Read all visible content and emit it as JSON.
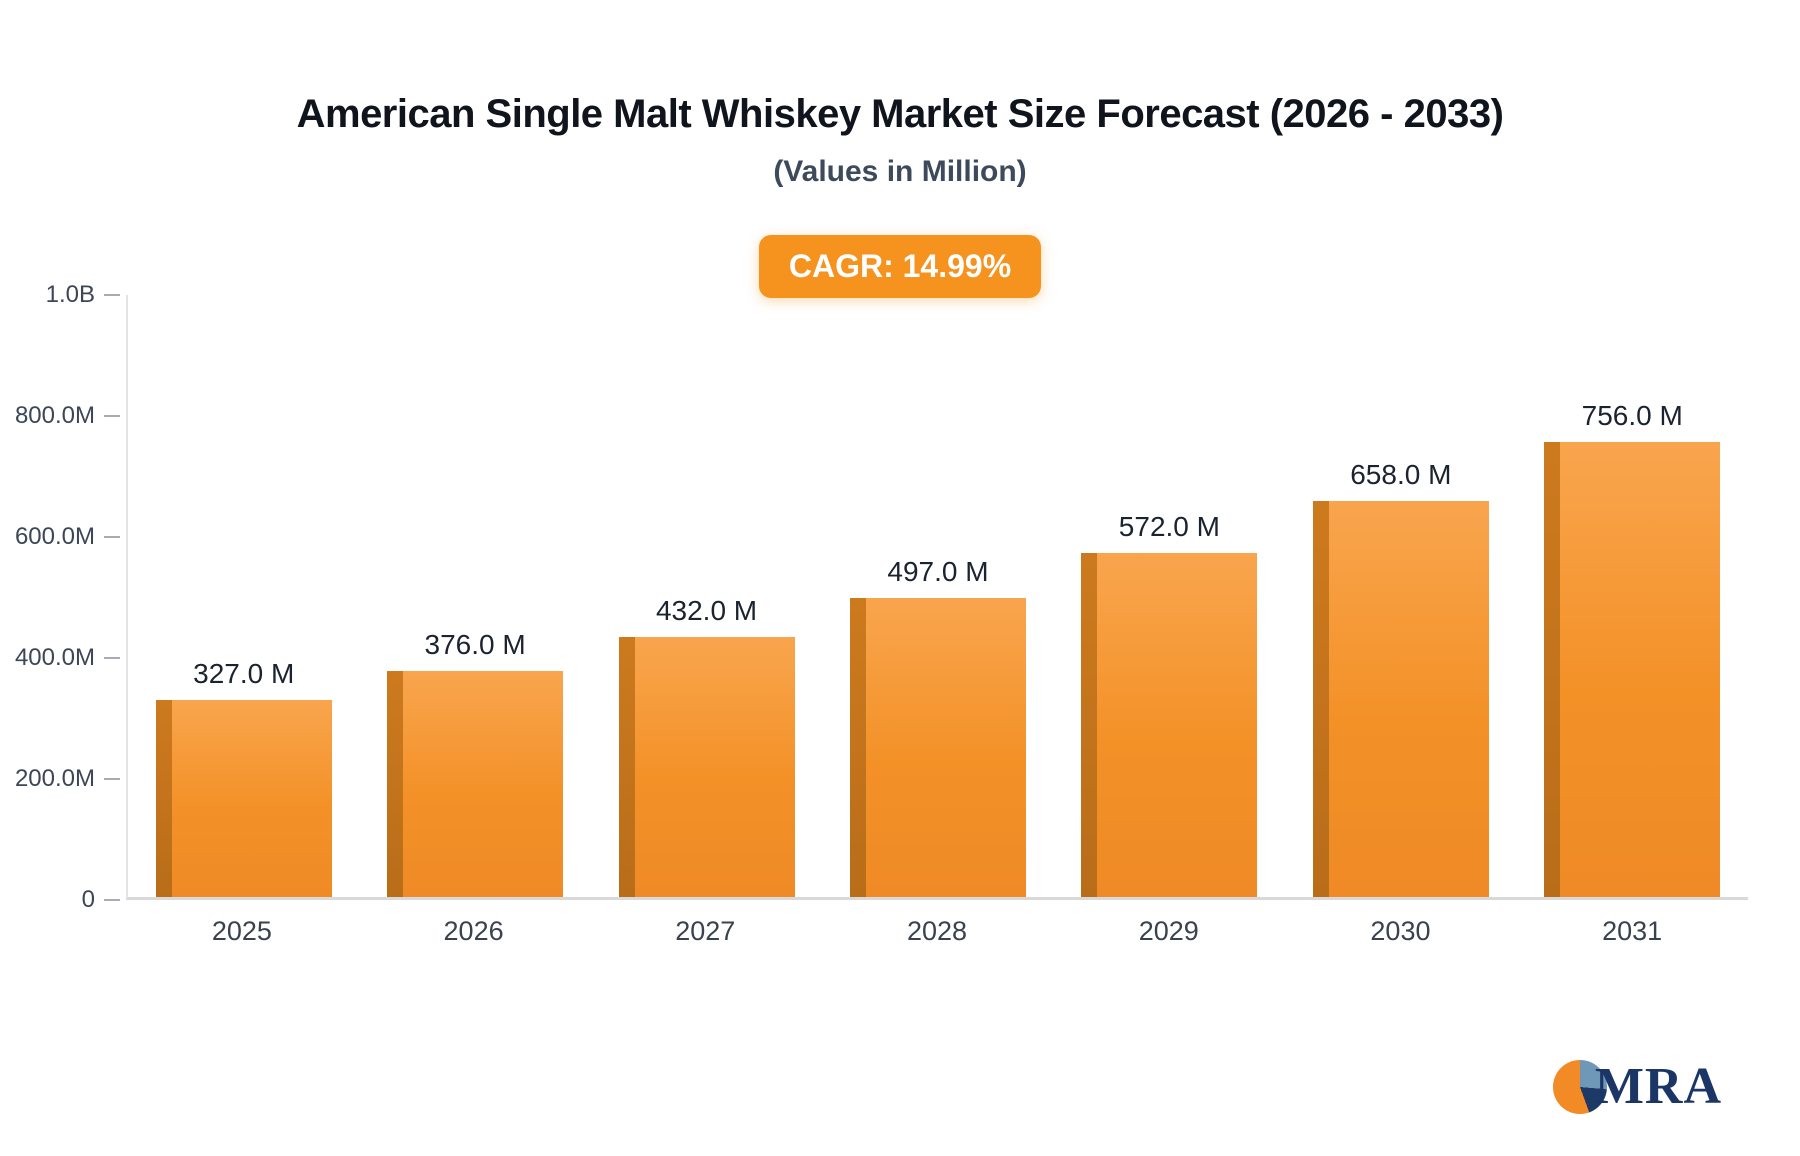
{
  "header": {
    "title": "American Single Malt Whiskey Market Size Forecast (2026 - 2033)",
    "subtitle": "(Values in Million)",
    "cagr_badge": "CAGR: 14.99%"
  },
  "branding": {
    "logo_text": "MRA",
    "logo_icon": "pie-circle-icon"
  },
  "colors": {
    "bar_front": "#F28A26",
    "bar_side": "#C2741C",
    "badge_background": "#F6921E",
    "badge_text": "#FFFFFF",
    "title_text": "#10141C",
    "axis_text": "#3C4656",
    "logo_navy": "#1B3666",
    "logo_blue": "#6F97B8",
    "logo_orange": "#F28A25"
  },
  "chart_data": {
    "type": "bar",
    "title": "American Single Malt Whiskey Market Size Forecast (2026 - 2033)",
    "subtitle": "(Values in Million)",
    "categories": [
      "2025",
      "2026",
      "2027",
      "2028",
      "2029",
      "2030",
      "2031"
    ],
    "values": [
      327.0,
      376.0,
      432.0,
      497.0,
      572.0,
      658.0,
      756.0
    ],
    "value_labels": [
      "327.0 M",
      "376.0 M",
      "432.0 M",
      "497.0 M",
      "572.0 M",
      "658.0 M",
      "756.0 M"
    ],
    "xlabel": "",
    "ylabel": "",
    "ylim": [
      0,
      1000
    ],
    "yticks": [
      {
        "value": 0,
        "label": "0"
      },
      {
        "value": 200,
        "label": "200.0M"
      },
      {
        "value": 400,
        "label": "400.0M"
      },
      {
        "value": 600,
        "label": "600.0M"
      },
      {
        "value": 800,
        "label": "800.0M"
      },
      {
        "value": 1000,
        "label": "1.0B"
      }
    ],
    "grid": false,
    "legend_position": "none",
    "annotations": [
      "CAGR: 14.99%"
    ]
  }
}
